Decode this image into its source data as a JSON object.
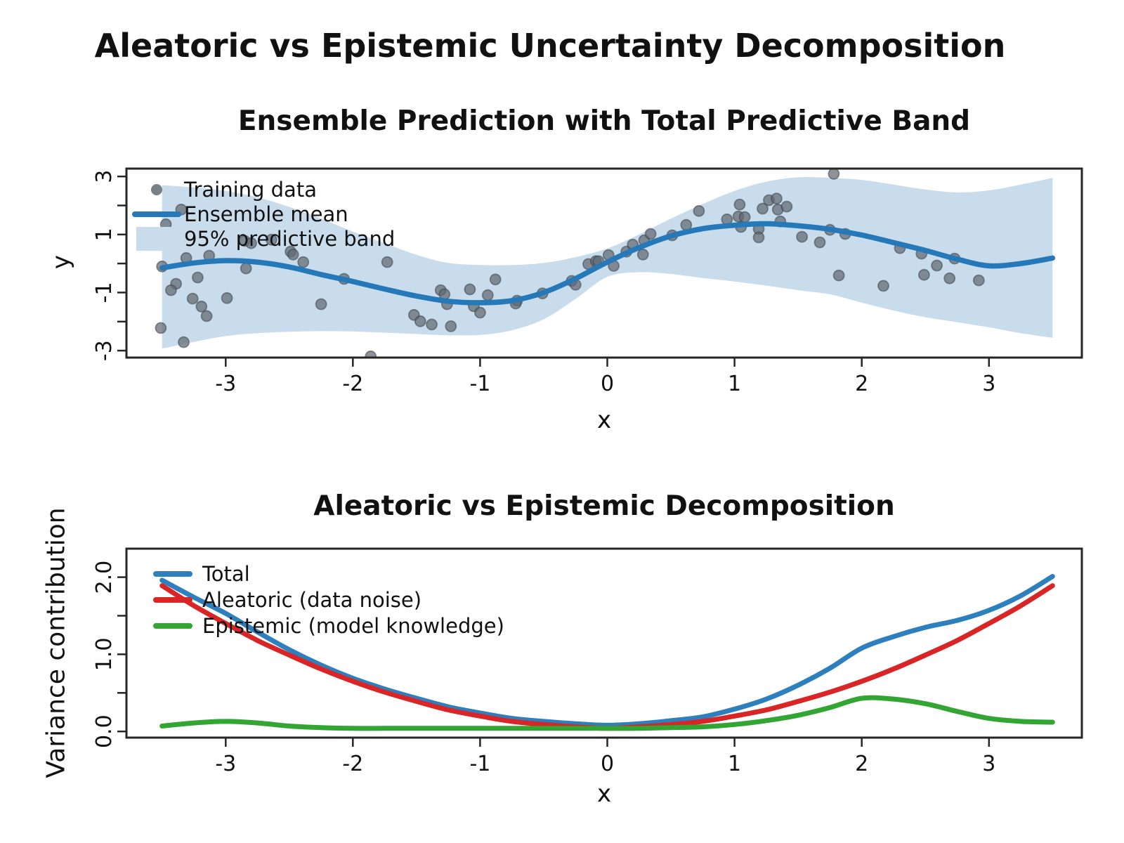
{
  "main_title": "Aleatoric vs Epistemic Uncertainty Decomposition",
  "colors": {
    "mean_line": "#2679b8",
    "band_fill": "#c9dcec",
    "scatter_fill": "#616a71",
    "scatter_edge": "#3a434b",
    "total_line": "#2d80bd",
    "aleatoric_line": "#d92525",
    "epistemic_line": "#33a533",
    "axis": "#262626",
    "text": "#111111"
  },
  "chart_data": [
    {
      "type": "scatter",
      "title": "Ensemble Prediction with Total Predictive Band",
      "xlabel": "x",
      "ylabel": "y",
      "xlim": [
        -3.78,
        3.73
      ],
      "ylim": [
        -3.24,
        3.27
      ],
      "grid": false,
      "legend_position": "upper-left",
      "x_tick_values": [
        -3,
        -2,
        -1,
        0,
        1,
        2,
        3
      ],
      "x_tick_labels": [
        "-3",
        "-2",
        "-1",
        "0",
        "1",
        "2",
        "3"
      ],
      "y_tick_values": [
        3,
        2,
        1,
        0,
        -1,
        -2,
        -3
      ],
      "y_tick_labels": [
        "3",
        "",
        "1",
        "",
        "-1",
        "",
        "-3"
      ],
      "legend": [
        {
          "label": "Training data",
          "marker": "dot"
        },
        {
          "label": "Ensemble mean",
          "marker": "line"
        },
        {
          "label": "95% predictive band",
          "marker": "patch"
        }
      ],
      "scatter": {
        "name": "Training data",
        "points": [
          [
            -3.35,
            1.86
          ],
          [
            -3.47,
            1.35
          ],
          [
            -3.31,
            0.19
          ],
          [
            -3.13,
            0.27
          ],
          [
            -3.5,
            -0.1
          ],
          [
            -3.22,
            -0.48
          ],
          [
            -3.39,
            -0.7
          ],
          [
            -3.43,
            -0.92
          ],
          [
            -3.26,
            -1.21
          ],
          [
            -3.19,
            -1.48
          ],
          [
            -3.15,
            -1.81
          ],
          [
            -3.51,
            -2.22
          ],
          [
            -3.33,
            -2.71
          ],
          [
            -2.99,
            -1.19
          ],
          [
            -2.85,
            0.78
          ],
          [
            -2.64,
            0.82
          ],
          [
            -2.84,
            -0.17
          ],
          [
            -2.8,
            0.7
          ],
          [
            -2.49,
            0.41
          ],
          [
            -2.47,
            0.31
          ],
          [
            -2.39,
            0.05
          ],
          [
            -2.07,
            -0.53
          ],
          [
            -1.73,
            0.05
          ],
          [
            -2.25,
            -1.4
          ],
          [
            -1.52,
            -1.77
          ],
          [
            -1.47,
            -1.99
          ],
          [
            -1.86,
            -3.2
          ],
          [
            -1.31,
            -0.92
          ],
          [
            -1.28,
            -1.06
          ],
          [
            -1.08,
            -0.89
          ],
          [
            -1.26,
            -1.4
          ],
          [
            -1.05,
            -1.47
          ],
          [
            -1.0,
            -1.69
          ],
          [
            -0.88,
            -0.55
          ],
          [
            -0.94,
            -1.09
          ],
          [
            -1.23,
            -2.16
          ],
          [
            -1.38,
            -2.1
          ],
          [
            -0.71,
            -1.28
          ],
          [
            -0.72,
            -1.38
          ],
          [
            -0.51,
            -1.03
          ],
          [
            -0.28,
            -0.6
          ],
          [
            -0.25,
            -0.73
          ],
          [
            -0.15,
            -0.02
          ],
          [
            -0.09,
            0.08
          ],
          [
            -0.07,
            0.08
          ],
          [
            0.01,
            0.29
          ],
          [
            0.05,
            -0.08
          ],
          [
            0.15,
            0.41
          ],
          [
            0.2,
            0.65
          ],
          [
            0.29,
            0.8
          ],
          [
            0.28,
            0.31
          ],
          [
            0.34,
            1.02
          ],
          [
            0.51,
            0.97
          ],
          [
            0.62,
            1.33
          ],
          [
            0.72,
            1.81
          ],
          [
            0.94,
            1.52
          ],
          [
            1.04,
            2.03
          ],
          [
            1.78,
            3.09
          ],
          [
            1.27,
            2.18
          ],
          [
            1.33,
            2.24
          ],
          [
            1.22,
            1.89
          ],
          [
            1.34,
            1.86
          ],
          [
            1.41,
            1.96
          ],
          [
            1.03,
            1.62
          ],
          [
            1.08,
            1.6
          ],
          [
            1.05,
            1.26
          ],
          [
            1.36,
            1.45
          ],
          [
            1.19,
            1.19
          ],
          [
            1.19,
            0.9
          ],
          [
            1.53,
            0.92
          ],
          [
            1.67,
            0.73
          ],
          [
            1.75,
            1.16
          ],
          [
            1.87,
            1.02
          ],
          [
            2.3,
            0.53
          ],
          [
            2.47,
            0.34
          ],
          [
            2.49,
            -0.39
          ],
          [
            2.59,
            -0.07
          ],
          [
            2.73,
            0.17
          ],
          [
            2.69,
            -0.51
          ],
          [
            2.92,
            -0.58
          ],
          [
            1.82,
            -0.41
          ],
          [
            2.17,
            -0.77
          ]
        ]
      },
      "curve_x": [
        -3.5,
        -3.25,
        -3.0,
        -2.75,
        -2.5,
        -2.25,
        -2.0,
        -1.75,
        -1.5,
        -1.25,
        -1.0,
        -0.75,
        -0.5,
        -0.25,
        0.0,
        0.25,
        0.5,
        0.75,
        1.0,
        1.25,
        1.5,
        1.75,
        2.0,
        2.25,
        2.5,
        2.75,
        3.0,
        3.25,
        3.5
      ],
      "ensemble_mean": [
        -0.15,
        0.02,
        0.1,
        0.05,
        -0.12,
        -0.38,
        -0.62,
        -0.88,
        -1.12,
        -1.3,
        -1.35,
        -1.28,
        -1.0,
        -0.52,
        0.05,
        0.55,
        0.95,
        1.2,
        1.32,
        1.37,
        1.3,
        1.18,
        0.98,
        0.72,
        0.45,
        0.15,
        -0.08,
        0.0,
        0.19
      ],
      "band_upper": [
        2.7,
        2.62,
        2.5,
        2.28,
        1.95,
        1.55,
        1.1,
        0.7,
        0.3,
        0.02,
        -0.05,
        -0.05,
        0.02,
        0.22,
        0.52,
        1.0,
        1.55,
        2.05,
        2.5,
        2.82,
        2.97,
        2.95,
        2.88,
        2.72,
        2.55,
        2.45,
        2.52,
        2.72,
        2.95
      ],
      "band_lower": [
        -2.93,
        -2.7,
        -2.5,
        -2.4,
        -2.35,
        -2.33,
        -2.34,
        -2.38,
        -2.43,
        -2.47,
        -2.46,
        -2.3,
        -1.92,
        -1.22,
        -0.46,
        -0.3,
        -0.36,
        -0.5,
        -0.62,
        -0.76,
        -0.92,
        -1.06,
        -1.35,
        -1.62,
        -1.85,
        -2.02,
        -2.2,
        -2.4,
        -2.56
      ]
    },
    {
      "type": "line",
      "title": "Aleatoric vs Epistemic Decomposition",
      "xlabel": "x",
      "ylabel": "Variance contribution",
      "xlim": [
        -3.78,
        3.73
      ],
      "ylim": [
        -0.08,
        2.37
      ],
      "grid": false,
      "legend_position": "upper-left",
      "x_tick_values": [
        -3,
        -2,
        -1,
        0,
        1,
        2,
        3
      ],
      "x_tick_labels": [
        "-3",
        "-2",
        "-1",
        "0",
        "1",
        "2",
        "3"
      ],
      "y_tick_values": [
        2,
        1.5,
        1,
        0.5,
        0
      ],
      "y_tick_labels": [
        "2.0",
        "",
        "1.0",
        "",
        "0.0"
      ],
      "x": [
        -3.5,
        -3.25,
        -3.0,
        -2.75,
        -2.5,
        -2.25,
        -2.0,
        -1.75,
        -1.5,
        -1.25,
        -1.0,
        -0.75,
        -0.5,
        -0.25,
        0.0,
        0.25,
        0.5,
        0.75,
        1.0,
        1.25,
        1.5,
        1.75,
        2.0,
        2.25,
        2.5,
        2.75,
        3.0,
        3.25,
        3.5
      ],
      "series": [
        {
          "name": "Total",
          "values": [
            1.96,
            1.74,
            1.53,
            1.29,
            1.06,
            0.86,
            0.69,
            0.55,
            0.43,
            0.32,
            0.24,
            0.17,
            0.13,
            0.1,
            0.08,
            0.1,
            0.14,
            0.19,
            0.29,
            0.42,
            0.6,
            0.82,
            1.08,
            1.23,
            1.35,
            1.44,
            1.57,
            1.76,
            2.01
          ]
        },
        {
          "name": "Aleatoric (data noise)",
          "values": [
            1.89,
            1.63,
            1.4,
            1.18,
            0.99,
            0.81,
            0.65,
            0.51,
            0.39,
            0.28,
            0.2,
            0.13,
            0.09,
            0.06,
            0.04,
            0.06,
            0.09,
            0.13,
            0.2,
            0.28,
            0.39,
            0.51,
            0.65,
            0.81,
            0.99,
            1.18,
            1.4,
            1.63,
            1.89
          ]
        },
        {
          "name": "Epistemic (model knowledge)",
          "values": [
            0.07,
            0.11,
            0.13,
            0.11,
            0.07,
            0.05,
            0.04,
            0.04,
            0.04,
            0.04,
            0.04,
            0.04,
            0.04,
            0.04,
            0.04,
            0.04,
            0.05,
            0.06,
            0.09,
            0.14,
            0.21,
            0.31,
            0.43,
            0.42,
            0.36,
            0.26,
            0.17,
            0.13,
            0.12
          ]
        }
      ]
    }
  ]
}
